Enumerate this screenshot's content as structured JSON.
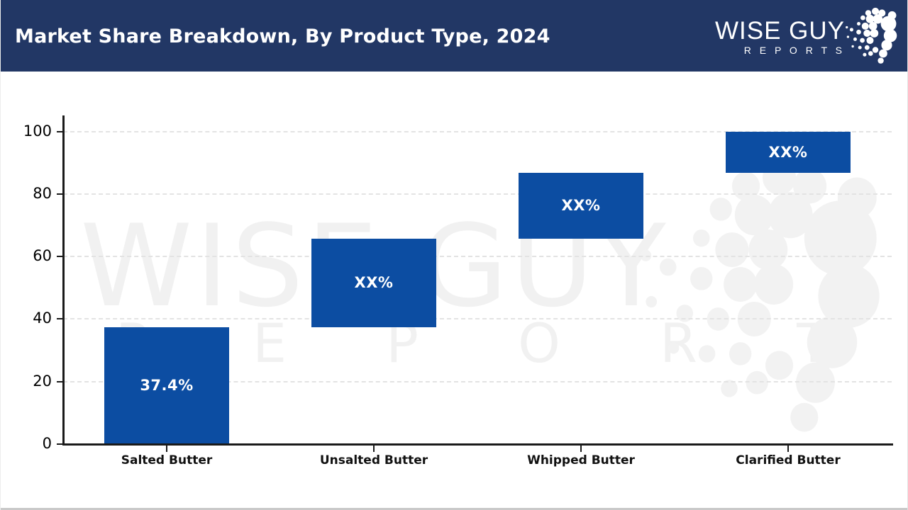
{
  "header": {
    "title": "Market Share Breakdown, By Product Type, 2024",
    "logo": {
      "name": "WISE GUY REPORTS",
      "line1": "WISE GUY",
      "line2": "R E P O R T S"
    }
  },
  "watermark": {
    "line1": "WISE GUY",
    "line2": "R E P O R T S"
  },
  "chart_data": {
    "type": "bar",
    "subtype": "waterfall",
    "title": "Market Share Breakdown, By Product Type, 2024",
    "categories": [
      "Salted Butter",
      "Unsalted Butter",
      "Whipped Butter",
      "Clarified Butter"
    ],
    "segments": [
      {
        "category": "Salted Butter",
        "start": 0,
        "end": 37.4,
        "label": "37.4%"
      },
      {
        "category": "Unsalted Butter",
        "start": 37.4,
        "end": 65.8,
        "label": "XX%"
      },
      {
        "category": "Whipped Butter",
        "start": 65.8,
        "end": 86.7,
        "label": "XX%"
      },
      {
        "category": "Clarified Butter",
        "start": 86.7,
        "end": 100,
        "label": "XX%"
      }
    ],
    "yticks": [
      0,
      20,
      40,
      60,
      80,
      100
    ],
    "ylim": [
      0,
      105
    ],
    "xlabel": "",
    "ylabel": "",
    "grid": "horizontal-dashed",
    "colors": {
      "bar": "#0C4DA2",
      "header_bg": "#223765",
      "grid": "#e3e3e3",
      "axis": "#1a1a1a",
      "bar_label": "#ffffff",
      "watermark": "#f1f1f1"
    }
  }
}
